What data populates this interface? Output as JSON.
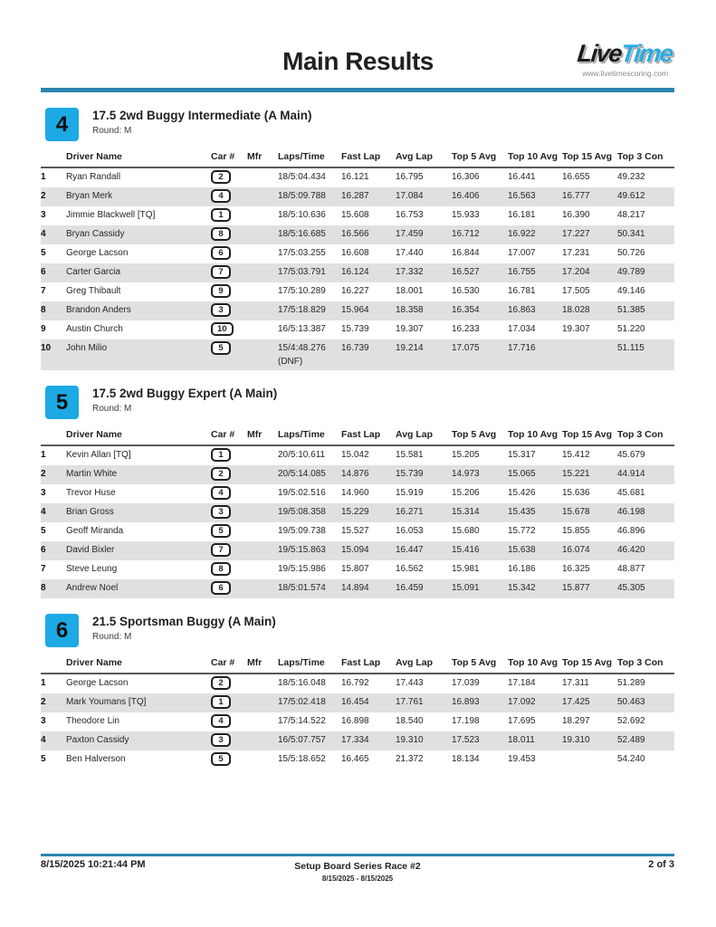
{
  "colors": {
    "accent": "#1CA9E4",
    "rule": "#2B85AD",
    "stripe": "#E0E0E0",
    "logo_blue": "#29ABE2"
  },
  "header": {
    "title": "Main Results",
    "logo": {
      "live": "Live",
      "time": "Time",
      "url": "www.livetimescoring.com"
    }
  },
  "columns": [
    "Driver Name",
    "Car #",
    "Mfr",
    "Laps/Time",
    "Fast Lap",
    "Avg Lap",
    "Top 5 Avg",
    "Top 10 Avg",
    "Top 15 Avg",
    "Top 3 Con"
  ],
  "sections": [
    {
      "number": "4",
      "title": "17.5 2wd Buggy Intermediate (A Main)",
      "round_label": "Round: M",
      "rows": [
        {
          "pos": "1",
          "driver": "Ryan Randall",
          "car": "2",
          "laps": "18/5:04.434",
          "fast": "16.121",
          "avg": "16.795",
          "top5": "16.306",
          "top10": "16.441",
          "top15": "16.655",
          "top3": "49.232"
        },
        {
          "pos": "2",
          "driver": "Bryan Merk",
          "car": "4",
          "laps": "18/5:09.788",
          "fast": "16.287",
          "avg": "17.084",
          "top5": "16.406",
          "top10": "16.563",
          "top15": "16.777",
          "top3": "49.612"
        },
        {
          "pos": "3",
          "driver": "Jimmie Blackwell [TQ]",
          "car": "1",
          "laps": "18/5:10.636",
          "fast": "15.608",
          "avg": "16.753",
          "top5": "15.933",
          "top10": "16.181",
          "top15": "16.390",
          "top3": "48.217"
        },
        {
          "pos": "4",
          "driver": "Bryan Cassidy",
          "car": "8",
          "laps": "18/5:16.685",
          "fast": "16.566",
          "avg": "17.459",
          "top5": "16.712",
          "top10": "16.922",
          "top15": "17.227",
          "top3": "50.341"
        },
        {
          "pos": "5",
          "driver": "George Lacson",
          "car": "6",
          "laps": "17/5:03.255",
          "fast": "16.608",
          "avg": "17.440",
          "top5": "16.844",
          "top10": "17.007",
          "top15": "17.231",
          "top3": "50.726"
        },
        {
          "pos": "6",
          "driver": "Carter Garcia",
          "car": "7",
          "laps": "17/5:03.791",
          "fast": "16.124",
          "avg": "17.332",
          "top5": "16.527",
          "top10": "16.755",
          "top15": "17.204",
          "top3": "49.789"
        },
        {
          "pos": "7",
          "driver": "Greg Thibault",
          "car": "9",
          "laps": "17/5:10.289",
          "fast": "16.227",
          "avg": "18.001",
          "top5": "16.530",
          "top10": "16.781",
          "top15": "17.505",
          "top3": "49.146"
        },
        {
          "pos": "8",
          "driver": "Brandon Anders",
          "car": "3",
          "laps": "17/5:18.829",
          "fast": "15.964",
          "avg": "18.358",
          "top5": "16.354",
          "top10": "16.863",
          "top15": "18.028",
          "top3": "51.385"
        },
        {
          "pos": "9",
          "driver": "Austin Church",
          "car": "10",
          "laps": "16/5:13.387",
          "fast": "15.739",
          "avg": "19.307",
          "top5": "16.233",
          "top10": "17.034",
          "top15": "19.307",
          "top3": "51.220"
        },
        {
          "pos": "10",
          "driver": "John Milio",
          "car": "5",
          "laps": "15/4:48.276",
          "laps2": "(DNF)",
          "fast": "16.739",
          "avg": "19.214",
          "top5": "17.075",
          "top10": "17.716",
          "top15": "",
          "top3": "51.115"
        }
      ]
    },
    {
      "number": "5",
      "title": "17.5 2wd Buggy Expert (A Main)",
      "round_label": "Round: M",
      "rows": [
        {
          "pos": "1",
          "driver": "Kevin Allan [TQ]",
          "car": "1",
          "laps": "20/5:10.611",
          "fast": "15.042",
          "avg": "15.581",
          "top5": "15.205",
          "top10": "15.317",
          "top15": "15.412",
          "top3": "45.679"
        },
        {
          "pos": "2",
          "driver": "Martin White",
          "car": "2",
          "laps": "20/5:14.085",
          "fast": "14.876",
          "avg": "15.739",
          "top5": "14.973",
          "top10": "15.065",
          "top15": "15.221",
          "top3": "44.914"
        },
        {
          "pos": "3",
          "driver": "Trevor Huse",
          "car": "4",
          "laps": "19/5:02.516",
          "fast": "14.960",
          "avg": "15.919",
          "top5": "15.206",
          "top10": "15.426",
          "top15": "15.636",
          "top3": "45.681"
        },
        {
          "pos": "4",
          "driver": "Brian Gross",
          "car": "3",
          "laps": "19/5:08.358",
          "fast": "15.229",
          "avg": "16.271",
          "top5": "15.314",
          "top10": "15.435",
          "top15": "15.678",
          "top3": "46.198"
        },
        {
          "pos": "5",
          "driver": "Geoff Miranda",
          "car": "5",
          "laps": "19/5:09.738",
          "fast": "15.527",
          "avg": "16.053",
          "top5": "15.680",
          "top10": "15.772",
          "top15": "15.855",
          "top3": "46.896"
        },
        {
          "pos": "6",
          "driver": "David Bixler",
          "car": "7",
          "laps": "19/5:15.863",
          "fast": "15.094",
          "avg": "16.447",
          "top5": "15.416",
          "top10": "15.638",
          "top15": "16.074",
          "top3": "46.420"
        },
        {
          "pos": "7",
          "driver": "Steve Leung",
          "car": "8",
          "laps": "19/5:15.986",
          "fast": "15.807",
          "avg": "16.562",
          "top5": "15.981",
          "top10": "16.186",
          "top15": "16.325",
          "top3": "48.877"
        },
        {
          "pos": "8",
          "driver": "Andrew Noel",
          "car": "6",
          "laps": "18/5:01.574",
          "fast": "14.894",
          "avg": "16.459",
          "top5": "15.091",
          "top10": "15.342",
          "top15": "15.877",
          "top3": "45.305"
        }
      ]
    },
    {
      "number": "6",
      "title": "21.5 Sportsman Buggy (A Main)",
      "round_label": "Round: M",
      "rows": [
        {
          "pos": "1",
          "driver": "George Lacson",
          "car": "2",
          "laps": "18/5:16.048",
          "fast": "16.792",
          "avg": "17.443",
          "top5": "17.039",
          "top10": "17.184",
          "top15": "17.311",
          "top3": "51.289"
        },
        {
          "pos": "2",
          "driver": "Mark Youmans [TQ]",
          "car": "1",
          "laps": "17/5:02.418",
          "fast": "16.454",
          "avg": "17.761",
          "top5": "16.893",
          "top10": "17.092",
          "top15": "17.425",
          "top3": "50.463"
        },
        {
          "pos": "3",
          "driver": "Theodore Lin",
          "car": "4",
          "laps": "17/5:14.522",
          "fast": "16.898",
          "avg": "18.540",
          "top5": "17.198",
          "top10": "17.695",
          "top15": "18.297",
          "top3": "52.692"
        },
        {
          "pos": "4",
          "driver": "Paxton Cassidy",
          "car": "3",
          "laps": "16/5:07.757",
          "fast": "17.334",
          "avg": "19.310",
          "top5": "17.523",
          "top10": "18.011",
          "top15": "19.310",
          "top3": "52.489"
        },
        {
          "pos": "5",
          "driver": "Ben Halverson",
          "car": "5",
          "laps": "15/5:18.652",
          "fast": "16.465",
          "avg": "21.372",
          "top5": "18.134",
          "top10": "19.453",
          "top15": "",
          "top3": "54.240"
        }
      ]
    }
  ],
  "footer": {
    "left": "8/15/2025 10:21:44 PM",
    "center_title": "Setup Board Series Race #2",
    "center_sub": "8/15/2025 - 8/15/2025",
    "right": "2 of 3"
  }
}
